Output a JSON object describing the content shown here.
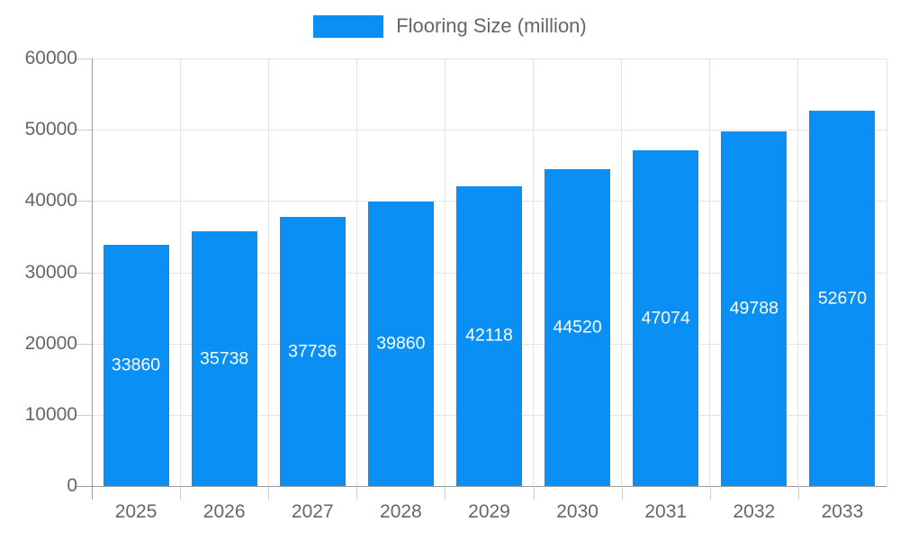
{
  "legend": {
    "label": "Flooring Size (million)"
  },
  "chart_data": {
    "type": "bar",
    "title": "",
    "categories": [
      "2025",
      "2026",
      "2027",
      "2028",
      "2029",
      "2030",
      "2031",
      "2032",
      "2033"
    ],
    "values": [
      33860,
      35738,
      37736,
      39860,
      42118,
      44520,
      47074,
      49788,
      52670
    ],
    "series_name": "Flooring Size (million)",
    "xlabel": "",
    "ylabel": "",
    "ylim": [
      0,
      60000
    ],
    "ytick_step": 10000,
    "ytick_labels": [
      "0",
      "10000",
      "20000",
      "30000",
      "40000",
      "50000",
      "60000"
    ],
    "grid": true,
    "legend_position": "top",
    "value_labels": "inside-center",
    "colors": {
      "bar": "#0a90f5",
      "value_label": "#ffffff",
      "axis_line": "#999999",
      "gridline": "#e3e3e3",
      "tick": "#cccccc",
      "axis_text": "#666666"
    }
  }
}
